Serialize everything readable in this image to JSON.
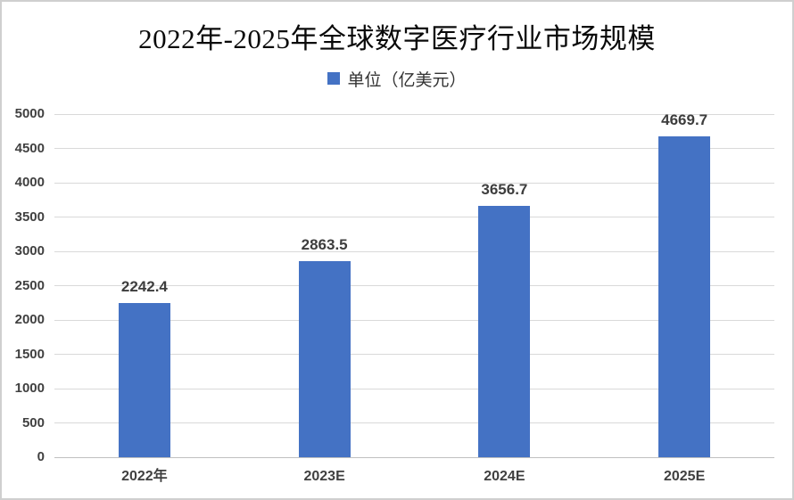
{
  "title": "2022年-2025年全球数字医疗行业市场规模",
  "legend": {
    "label": "单位（亿美元）",
    "marker_color": "#4472C4"
  },
  "chart_data": {
    "type": "bar",
    "title": "2022年-2025年全球数字医疗行业市场规模",
    "categories": [
      "2022年",
      "2023E",
      "2024E",
      "2025E"
    ],
    "values": [
      2242.4,
      2863.5,
      3656.7,
      4669.7
    ],
    "series_name": "单位（亿美元）",
    "xlabel": "",
    "ylabel": "",
    "ylim": [
      0,
      5000
    ],
    "y_ticks": [
      0,
      500,
      1000,
      1500,
      2000,
      2500,
      3000,
      3500,
      4000,
      4500,
      5000
    ],
    "grid": true,
    "legend_position": "top",
    "data_labels_shown": true,
    "colors": {
      "bar": "#4472C4",
      "value_label": "#3d3d3d",
      "tick_label": "#404040",
      "gridline": "#d9d9d9",
      "axis_line": "#bfbfbf",
      "background": "#ffffff"
    }
  }
}
